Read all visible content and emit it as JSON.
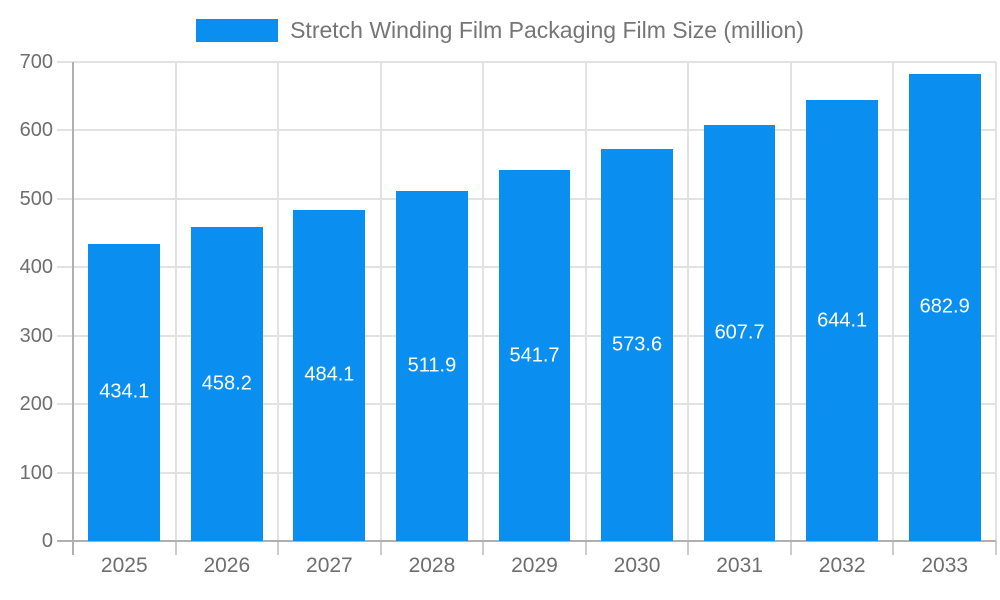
{
  "chart_data": {
    "type": "bar",
    "title": "Stretch Winding Film Packaging Film Size (million)",
    "xlabel": "",
    "ylabel": "",
    "categories": [
      "2025",
      "2026",
      "2027",
      "2028",
      "2029",
      "2030",
      "2031",
      "2032",
      "2033"
    ],
    "values": [
      434.1,
      458.2,
      484.1,
      511.9,
      541.7,
      573.6,
      607.7,
      644.1,
      682.9
    ],
    "value_labels": [
      "434.1",
      "458.2",
      "484.1",
      "511.9",
      "541.7",
      "573.6",
      "607.7",
      "644.1",
      "682.9"
    ],
    "ylim": [
      0,
      700
    ],
    "yticks": [
      0,
      100,
      200,
      300,
      400,
      500,
      600,
      700
    ],
    "grid": true,
    "legend_position": "top-center",
    "bar_width_fraction": 0.7,
    "colors": {
      "bar": "#0a8ff0",
      "grid": "#e2e2e2",
      "axis": "#b0b0b0",
      "tick": "#cccccc",
      "title_text": "#757575",
      "tick_text": "#6e6e6e",
      "value_text": "#ffffff",
      "background": "#ffffff"
    }
  }
}
